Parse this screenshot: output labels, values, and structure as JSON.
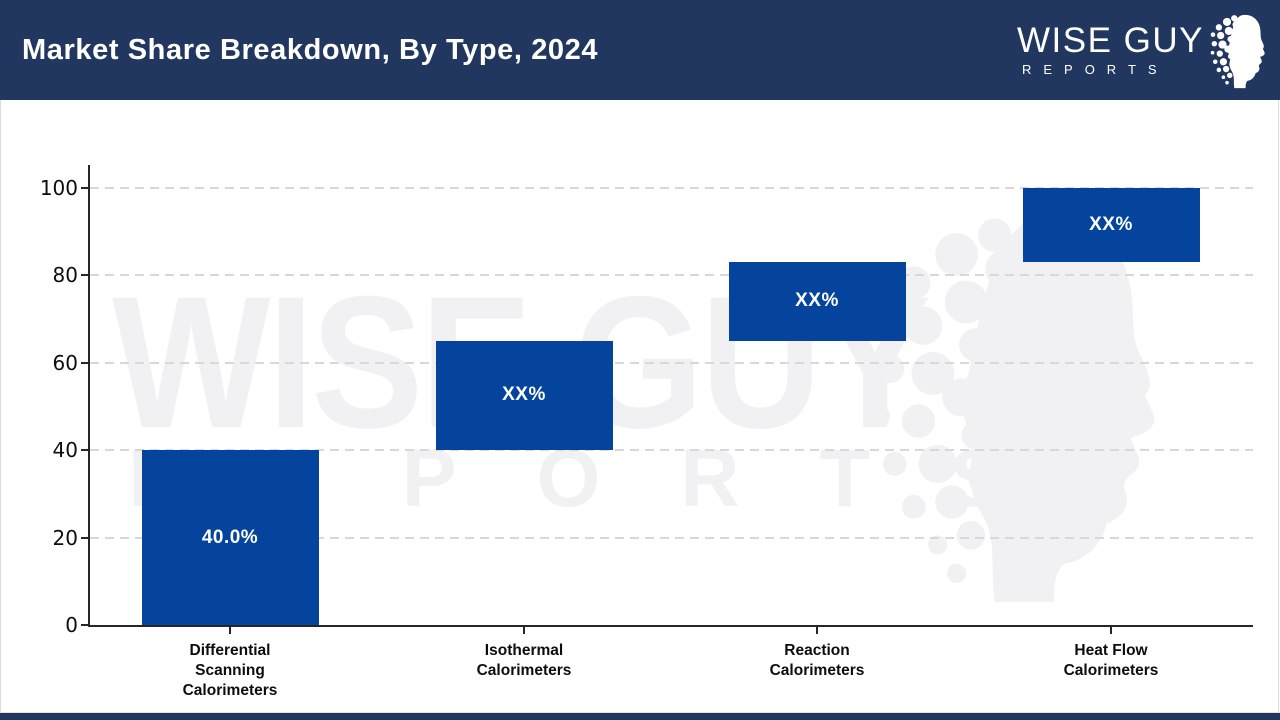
{
  "header": {
    "title": "Market Share Breakdown, By Type, 2024",
    "logo": {
      "wordmark": "WISE GUY",
      "reports": "REPORTS"
    }
  },
  "watermark": {
    "wordmark": "WISE GUY",
    "reports": "REPORTS"
  },
  "chart_data": {
    "type": "bar",
    "subtype": "waterfall",
    "title": "Market Share Breakdown, By Type, 2024",
    "categories": [
      [
        "Differential",
        "Scanning",
        "Calorimeters"
      ],
      [
        "Isothermal",
        "Calorimeters"
      ],
      [
        "Reaction",
        "Calorimeters"
      ],
      [
        "Heat Flow",
        "Calorimeters"
      ]
    ],
    "bars": [
      {
        "start": 0,
        "end": 40,
        "label": "40.0%"
      },
      {
        "start": 40,
        "end": 65,
        "label": "XX%"
      },
      {
        "start": 65,
        "end": 83,
        "label": "XX%"
      },
      {
        "start": 83,
        "end": 100,
        "label": "XX%"
      }
    ],
    "xlabel": "",
    "ylabel": "",
    "ylim": [
      0,
      100
    ],
    "yticks": [
      0,
      20,
      40,
      60,
      80,
      100
    ],
    "grid": "horizontal-dashed",
    "legend": "none",
    "bar_color": "#05449C",
    "bar_label_color": "#FFFFFF"
  },
  "colors": {
    "header_bg": "#21375F",
    "footer_bg": "#21375F",
    "bar": "#05449C",
    "axis": "#262626",
    "gridline": "#D8D8D8",
    "watermark": "#F1F1F4",
    "tick_text": "#0D0D0D"
  }
}
